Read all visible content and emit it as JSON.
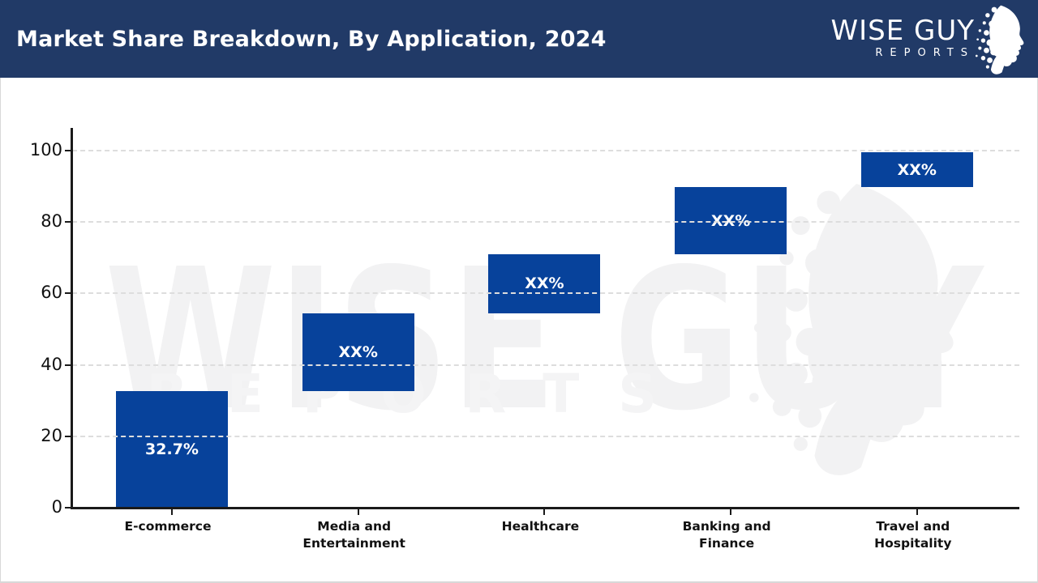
{
  "header": {
    "title": "Market Share Breakdown, By Application, 2024",
    "logo": {
      "line1": "WISE GUY",
      "line2": "REPORTS"
    }
  },
  "watermark": {
    "line1": "WISE GUY",
    "line2": "REPORTS"
  },
  "colors": {
    "header_bg": "#213a67",
    "bar": "#07429b",
    "bar_label": "#ffffff",
    "gridline": "#dddddd",
    "axis": "#1a1a1a",
    "watermark": "#f2f2f3"
  },
  "chart_data": {
    "type": "bar",
    "subtype": "waterfall",
    "title": "Market Share Breakdown, By Application, 2024",
    "xlabel": "",
    "ylabel": "",
    "categories": [
      "E-commerce",
      "Media and Entertainment",
      "Healthcare",
      "Banking and Finance",
      "Travel and Hospitality"
    ],
    "segments": [
      [
        0,
        32.7
      ],
      [
        32.7,
        54.5
      ],
      [
        54.5,
        71.0
      ],
      [
        71.0,
        89.7
      ],
      [
        89.7,
        99.6
      ]
    ],
    "bar_labels": [
      "32.7%",
      "XX%",
      "XX%",
      "XX%",
      "XX%"
    ],
    "yticks": [
      0,
      20,
      40,
      60,
      80,
      100
    ],
    "ylim": [
      0,
      100
    ],
    "grid": "horizontal-dashed",
    "grid_above_bars": true,
    "legend": "none"
  }
}
